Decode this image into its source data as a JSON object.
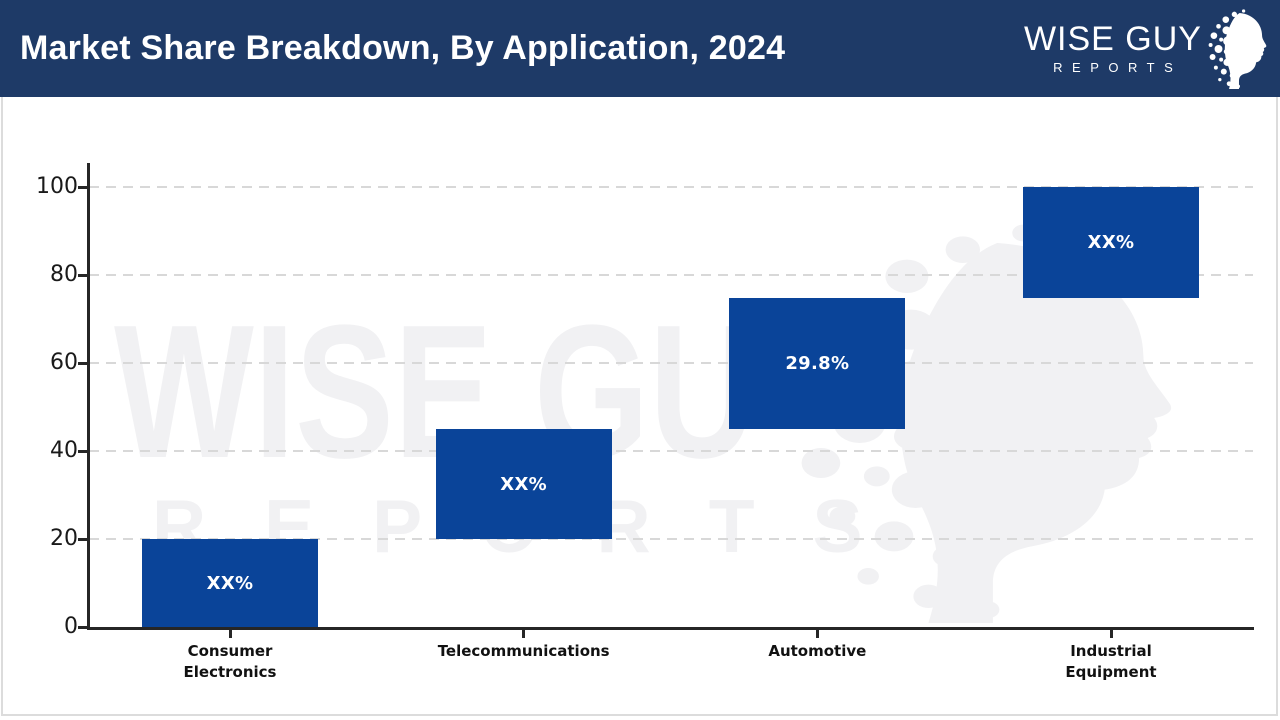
{
  "header": {
    "title": "Market Share Breakdown, By Application, 2024",
    "logo": {
      "name": "WISE GUY",
      "tagline": "REPORTS"
    }
  },
  "watermark": {
    "name": "WISE GU",
    "tagline": "REPORTS"
  },
  "colors": {
    "header_bg": "#1e3a67",
    "bar_fill": "#0a4499",
    "bar_label": "#ffffff",
    "grid": "#d8d8d8",
    "axis": "#262626",
    "tick_label": "#1a1a1a",
    "watermark": "#f1f1f3"
  },
  "chart_data": {
    "type": "bar",
    "variant": "floating-waterfall-segments",
    "title": "Market Share Breakdown, By Application, 2024",
    "xlabel": "",
    "ylabel": "",
    "ylim": [
      0,
      106
    ],
    "yticks": [
      0,
      20,
      40,
      60,
      80,
      100
    ],
    "grid": "horizontal-dashed",
    "legend": "none",
    "categories": [
      "Consumer Electronics",
      "Telecommunications",
      "Automotive",
      "Industrial Equipment"
    ],
    "category_label_lines": [
      [
        "Consumer",
        "Electronics"
      ],
      [
        "Telecommunications"
      ],
      [
        "Automotive"
      ],
      [
        "Industrial",
        "Equipment"
      ]
    ],
    "bars": [
      {
        "category": "Consumer Electronics",
        "start": 0,
        "end": 20,
        "label": "XX%"
      },
      {
        "category": "Telecommunications",
        "start": 20,
        "end": 45,
        "label": "XX%"
      },
      {
        "category": "Automotive",
        "start": 45,
        "end": 74.8,
        "label": "29.8%"
      },
      {
        "category": "Industrial Equipment",
        "start": 74.8,
        "end": 100,
        "label": "XX%"
      }
    ]
  }
}
